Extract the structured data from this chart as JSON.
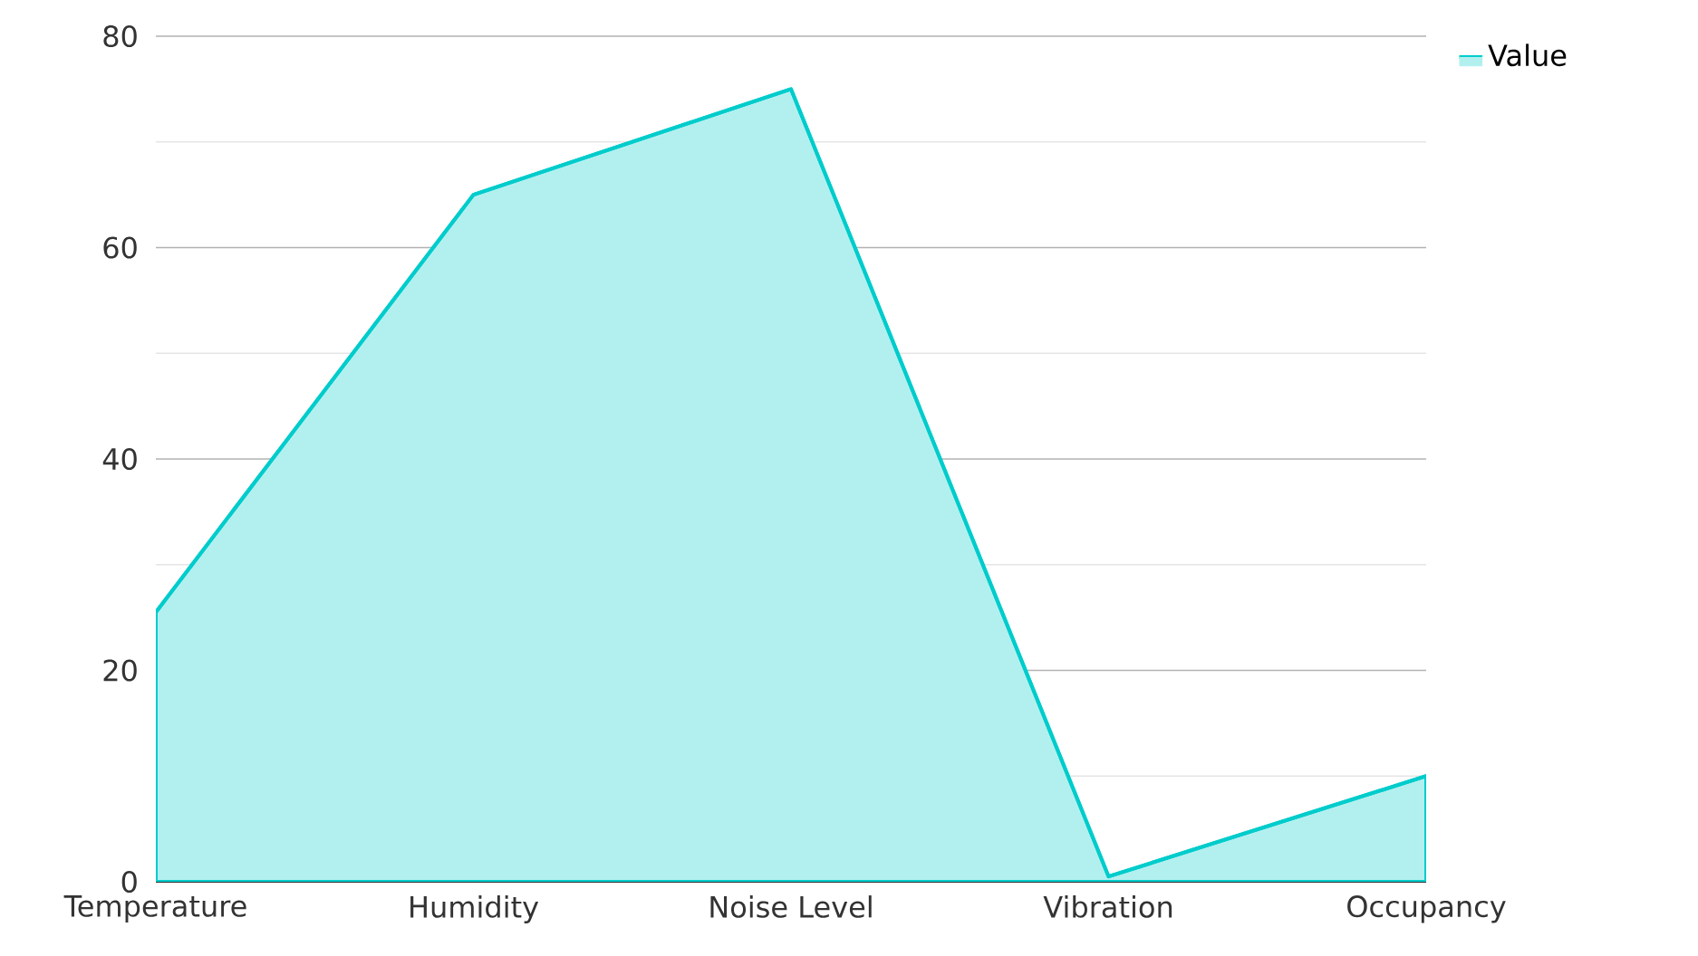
{
  "chart_data": {
    "type": "area",
    "categories": [
      "Temperature",
      "Humidity",
      "Noise Level",
      "Vibration",
      "Occupancy"
    ],
    "series": [
      {
        "name": "Value",
        "color": "#00cccc",
        "values": [
          25.5,
          65,
          75,
          0.5,
          10
        ]
      }
    ],
    "ylim": [
      0,
      80
    ],
    "yticks": [
      0,
      20,
      40,
      60,
      80
    ],
    "grid": "y",
    "legend": "top right"
  }
}
